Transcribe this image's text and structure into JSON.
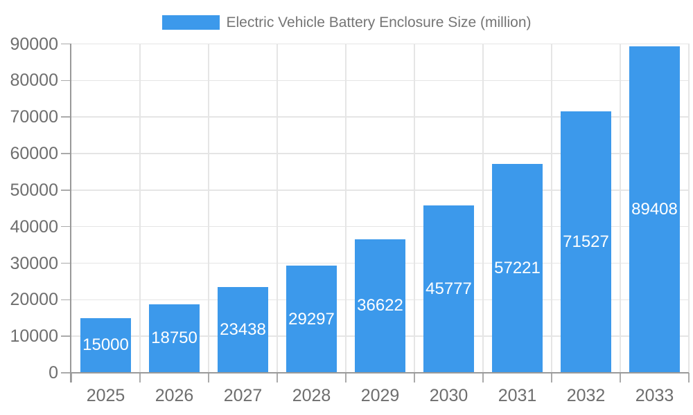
{
  "legend": {
    "series_label": "Electric Vehicle Battery Enclosure Size (million)"
  },
  "chart_data": {
    "type": "bar",
    "title": "Electric Vehicle Battery Enclosure Size (million)",
    "categories": [
      "2025",
      "2026",
      "2027",
      "2028",
      "2029",
      "2030",
      "2031",
      "2032",
      "2033"
    ],
    "series": [
      {
        "name": "Electric Vehicle Battery Enclosure Size (million)",
        "values": [
          15000,
          18750,
          23438,
          29297,
          36622,
          45777,
          57221,
          71527,
          89408
        ]
      }
    ],
    "bar_value_labels": [
      "15000",
      "18750",
      "23438",
      "29297",
      "36622",
      "45777",
      "57221",
      "71527",
      "89408"
    ],
    "xlabel": "",
    "ylabel": "",
    "ylim": [
      0,
      90000
    ],
    "ytick_step": 10000,
    "yticks": [
      0,
      10000,
      20000,
      30000,
      40000,
      50000,
      60000,
      70000,
      80000,
      90000
    ],
    "ytick_labels": [
      "0",
      "10000",
      "20000",
      "30000",
      "40000",
      "50000",
      "60000",
      "70000",
      "80000",
      "90000"
    ],
    "grid": true,
    "legend_position": "top-center",
    "value_labels_position": "inside-center",
    "colors": {
      "bar": "#3C99EB",
      "bar_label": "#ffffff",
      "axis_label": "#6E6E6E",
      "title_text": "#757575",
      "axis_line": "#999999",
      "tick": "#aaaaaa",
      "gridline": "#e5e5e5",
      "background": "#ffffff"
    }
  }
}
